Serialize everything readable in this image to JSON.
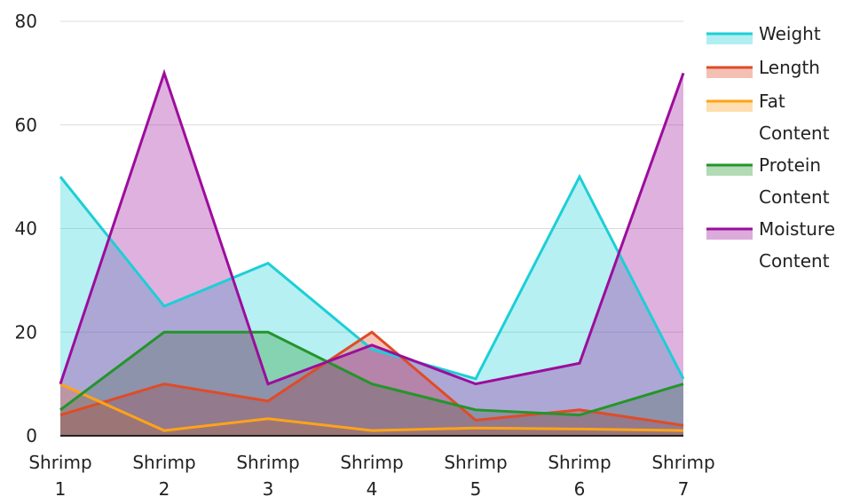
{
  "chart_data": {
    "type": "area",
    "categories": [
      "Shrimp 1",
      "Shrimp 2",
      "Shrimp 3",
      "Shrimp 4",
      "Shrimp 5",
      "Shrimp 6",
      "Shrimp 7"
    ],
    "series": [
      {
        "name": "Weight",
        "color": "#1ccfd6",
        "values": [
          50,
          25,
          33.3,
          16.7,
          11,
          50,
          11
        ]
      },
      {
        "name": "Length",
        "color": "#e04b27",
        "values": [
          4,
          10,
          6.7,
          20,
          3,
          5,
          2
        ]
      },
      {
        "name": "Fat Content",
        "color": "#ffa319",
        "values": [
          10,
          1,
          3.3,
          1,
          1.5,
          1.3,
          1
        ]
      },
      {
        "name": "Protein Content",
        "color": "#23952a",
        "values": [
          5,
          20,
          20,
          10,
          5,
          4,
          10
        ]
      },
      {
        "name": "Moisture Content",
        "color": "#9c0d9c",
        "values": [
          10,
          70,
          10,
          17.5,
          10,
          14,
          70
        ]
      }
    ],
    "title": "",
    "xlabel": "",
    "ylabel": "",
    "ylim": [
      0,
      80
    ],
    "yticks": [
      0,
      20,
      40,
      60,
      80
    ],
    "grid": true,
    "legend": "right"
  }
}
